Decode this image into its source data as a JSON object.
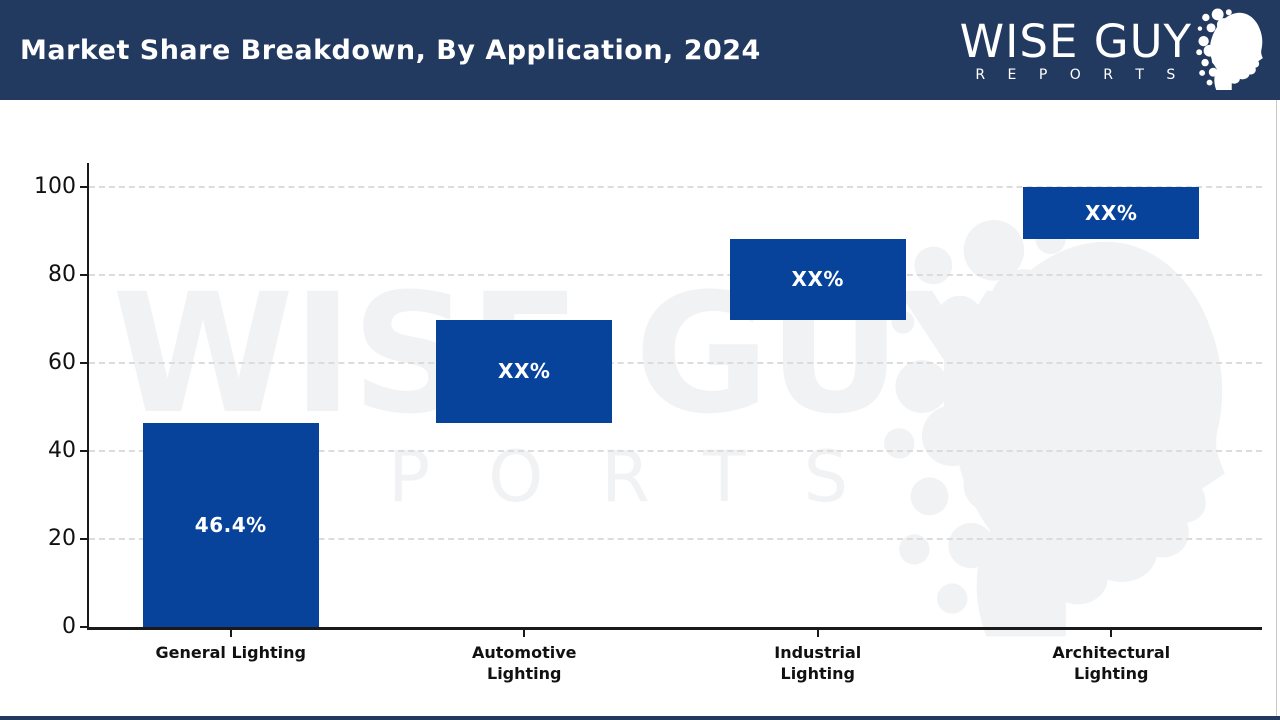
{
  "header": {
    "title": "Market Share Breakdown, By Application, 2024",
    "brand": {
      "name": "WISE GUY",
      "subtitle": "R E P O R T S"
    }
  },
  "watermark": {
    "big_text": "WISE GUY",
    "small_text": "PORTS"
  },
  "colors": {
    "header_bg": "#233a60",
    "bar": "#07439b",
    "bar_label": "#ffffff",
    "grid": "#dcdcdc",
    "axis": "#1a1a1a",
    "text": "#111111",
    "watermark": "#f1f2f4"
  },
  "chart_data": {
    "type": "bar",
    "subtype": "waterfall",
    "title": "Market Share Breakdown, By Application, 2024",
    "categories": [
      "General Lighting",
      "Automotive Lighting",
      "Industrial Lighting",
      "Architectural Lighting"
    ],
    "bars": [
      {
        "category_lines": [
          "General Lighting"
        ],
        "label": "46.4%",
        "base": 0,
        "top": 46.4
      },
      {
        "category_lines": [
          "Automotive",
          "Lighting"
        ],
        "label": "XX%",
        "base": 46.4,
        "top": 69.8
      },
      {
        "category_lines": [
          "Industrial",
          "Lighting"
        ],
        "label": "XX%",
        "base": 69.8,
        "top": 88.2
      },
      {
        "category_lines": [
          "Architectural",
          "Lighting"
        ],
        "label": "XX%",
        "base": 88.2,
        "top": 100
      }
    ],
    "xlabel": "",
    "ylabel": "",
    "ylim": [
      0,
      100
    ],
    "yticks": [
      0,
      20,
      40,
      60,
      80,
      100
    ],
    "grid": true,
    "legend": false
  }
}
